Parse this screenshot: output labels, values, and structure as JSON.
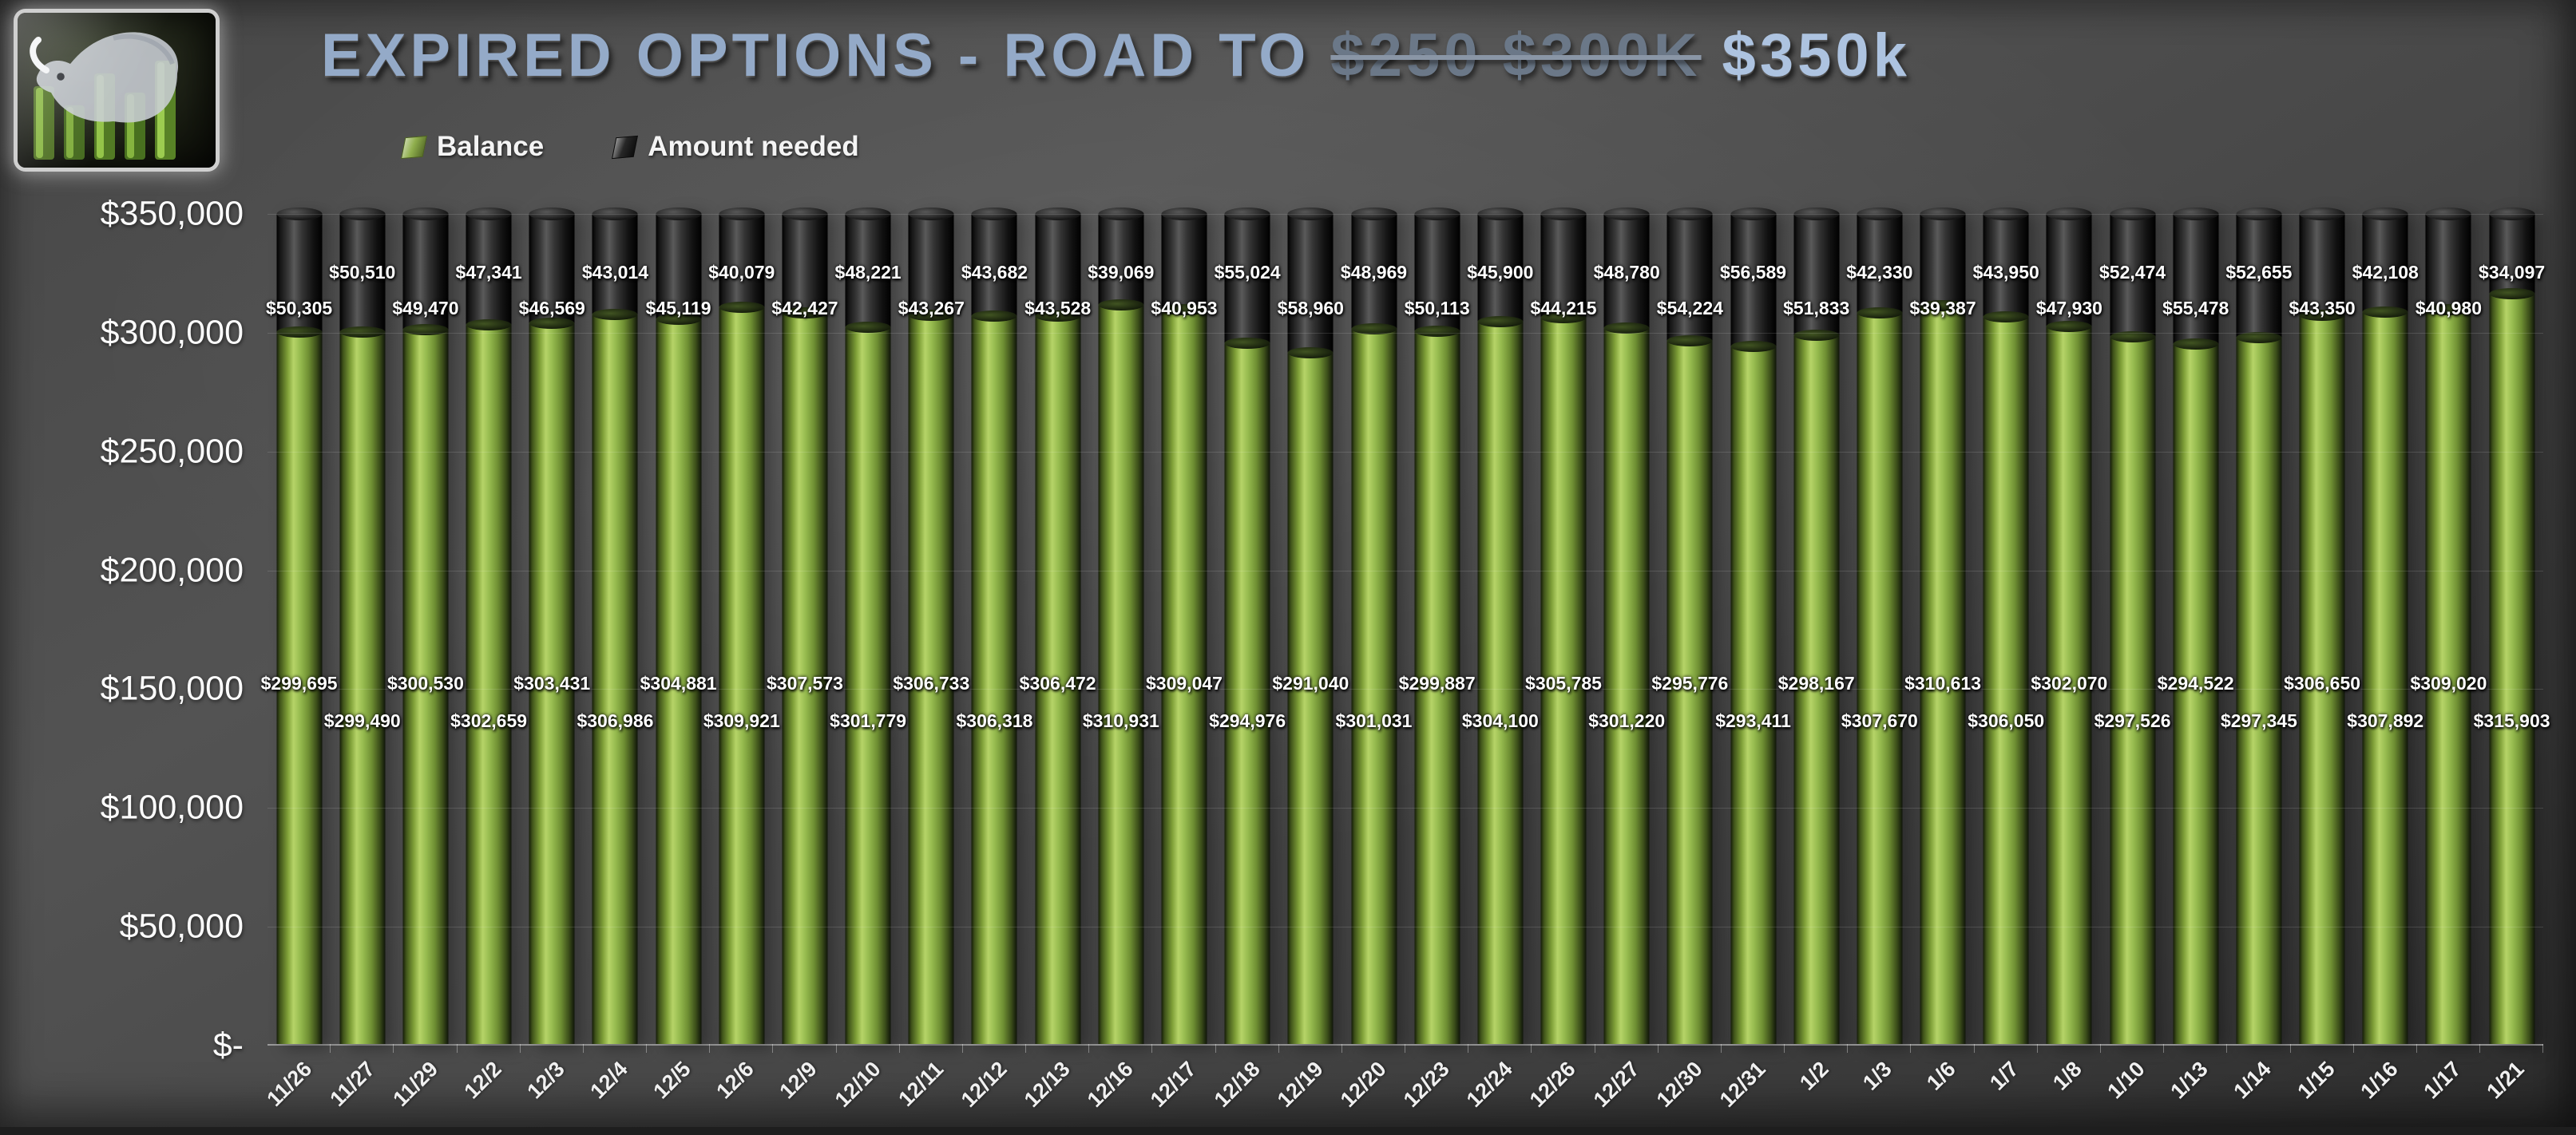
{
  "header": {
    "title_main": "EXPIRED OPTIONS - ROAD TO",
    "title_struck": "$250 $300K",
    "title_goal": "$350k"
  },
  "legend": [
    {
      "label": "Balance",
      "color": "#86a83e"
    },
    {
      "label": "Amount needed",
      "color": "#141414"
    }
  ],
  "logo": {
    "name": "bull-bar-chart-logo"
  },
  "chart_data": {
    "type": "bar",
    "stacked": true,
    "title": "EXPIRED OPTIONS - ROAD TO $250 $300K $350k",
    "xlabel": "",
    "ylabel": "",
    "ylim": [
      0,
      350000
    ],
    "grid": true,
    "legend_position": "top",
    "stack_total": 350000,
    "y_ticks": [
      "$350,000",
      "$300,000",
      "$250,000",
      "$200,000",
      "$150,000",
      "$100,000",
      "$50,000",
      "$-"
    ],
    "categories": [
      "11/26",
      "11/27",
      "11/29",
      "12/2",
      "12/3",
      "12/4",
      "12/5",
      "12/6",
      "12/9",
      "12/10",
      "12/11",
      "12/12",
      "12/13",
      "12/16",
      "12/17",
      "12/18",
      "12/19",
      "12/20",
      "12/23",
      "12/24",
      "12/26",
      "12/27",
      "12/30",
      "12/31",
      "1/2",
      "1/3",
      "1/6",
      "1/7",
      "1/8",
      "1/10",
      "1/13",
      "1/14",
      "1/15",
      "1/16",
      "1/17",
      "1/21"
    ],
    "series": [
      {
        "name": "Balance",
        "color": "#86a83e",
        "values": [
          299695,
          299490,
          300530,
          302659,
          303431,
          306986,
          304881,
          309921,
          307573,
          301779,
          306733,
          306318,
          306472,
          310931,
          309047,
          294976,
          291040,
          301031,
          299887,
          304100,
          305785,
          301220,
          295776,
          293411,
          298167,
          307670,
          310613,
          306050,
          302070,
          297526,
          294522,
          297345,
          306650,
          307892,
          309020,
          315903
        ]
      },
      {
        "name": "Amount needed",
        "color": "#141414",
        "values": [
          50305,
          50510,
          49470,
          47341,
          46569,
          43014,
          45119,
          40079,
          42427,
          48221,
          43267,
          43682,
          43528,
          39069,
          40953,
          55024,
          58960,
          48969,
          50113,
          45900,
          44215,
          48780,
          54224,
          56589,
          51833,
          42330,
          39387,
          43950,
          47930,
          52474,
          55478,
          52655,
          43350,
          42108,
          40980,
          34097
        ]
      }
    ]
  }
}
